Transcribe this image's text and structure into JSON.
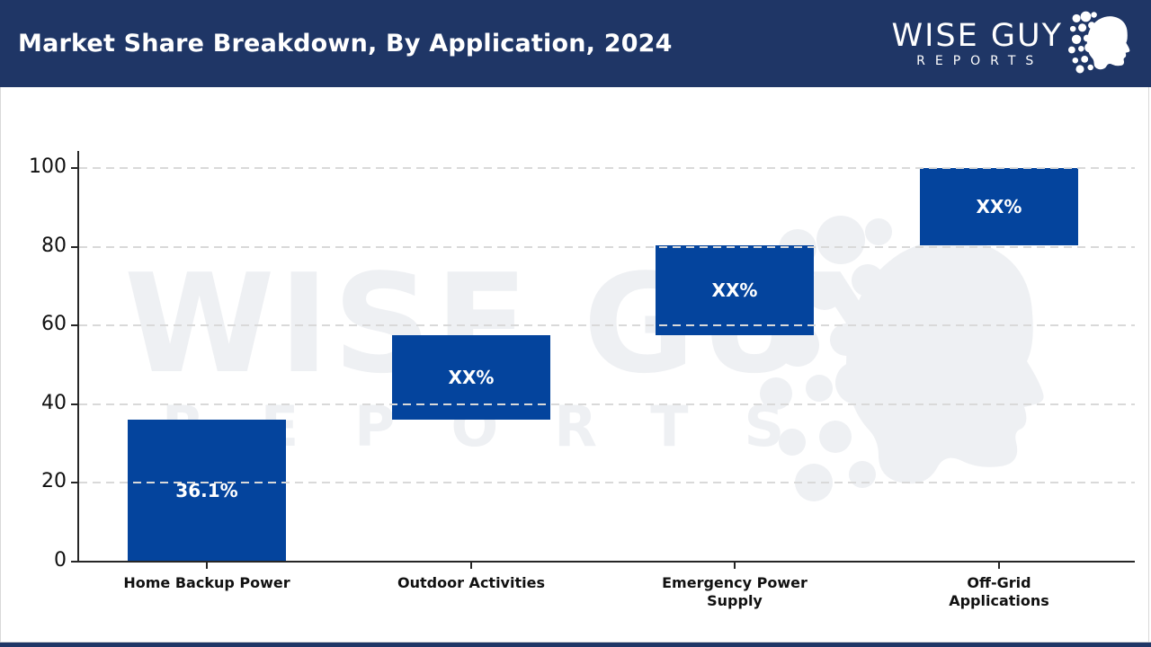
{
  "header": {
    "title": "Market Share Breakdown, By Application, 2024",
    "logo_line1": "WISE GUY",
    "logo_line2": "REPORTS",
    "bg_color": "#1f3666"
  },
  "watermark": {
    "line1": "WISE GUY",
    "line2": "REPORTS"
  },
  "chart_data": {
    "type": "waterfall",
    "title": "Market Share Breakdown, By Application, 2024",
    "categories": [
      "Home Backup Power",
      "Outdoor Activities",
      "Emergency Power\nSupply",
      "Off-Grid\nApplications"
    ],
    "segments": [
      {
        "category": "Home Backup Power",
        "start": 0,
        "end": 36.1,
        "label": "36.1%"
      },
      {
        "category": "Outdoor Activities",
        "start": 36.1,
        "end": 57.5,
        "label": "XX%"
      },
      {
        "category": "Emergency Power Supply",
        "start": 57.5,
        "end": 80.4,
        "label": "XX%"
      },
      {
        "category": "Off-Grid Applications",
        "start": 80.4,
        "end": 100,
        "label": "XX%"
      }
    ],
    "xlabel": "",
    "ylabel": "",
    "ylim": [
      0,
      100
    ],
    "yticks": [
      0,
      20,
      40,
      60,
      80,
      100
    ],
    "grid": true,
    "grid_style": "dashed",
    "bar_color": "#04449d",
    "bar_label_color": "#ffffff",
    "axis_color": "#262626",
    "legend": "none"
  }
}
